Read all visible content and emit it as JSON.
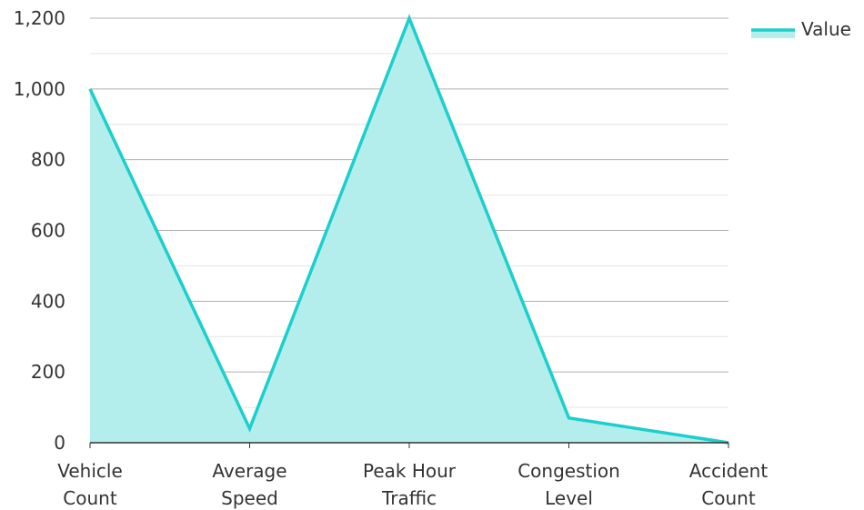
{
  "chart_data": {
    "type": "area",
    "title": "",
    "xlabel": "",
    "ylabel": "",
    "categories": [
      [
        "Vehicle",
        "Count"
      ],
      [
        "Average",
        "Speed"
      ],
      [
        "Peak Hour",
        "Traffic"
      ],
      [
        "Congestion",
        "Level"
      ],
      [
        "Accident",
        "Count"
      ]
    ],
    "series": [
      {
        "name": "Value",
        "values": [
          1000,
          40,
          1200,
          70,
          0
        ]
      }
    ],
    "ylim": [
      0,
      1200
    ],
    "yticks": [
      0,
      200,
      400,
      600,
      800,
      1000,
      1200
    ],
    "ytick_labels": [
      "0",
      "200",
      "400",
      "600",
      "800",
      "1,000",
      "1,200"
    ],
    "grid": true,
    "minor_grid": true,
    "legend_position": "top-right"
  },
  "colors": {
    "line": "#1ccfcc",
    "fill": "#b3eeed",
    "grid_major": "#b0b0b0",
    "grid_minor": "#e4e4e4",
    "axis": "#333333"
  }
}
